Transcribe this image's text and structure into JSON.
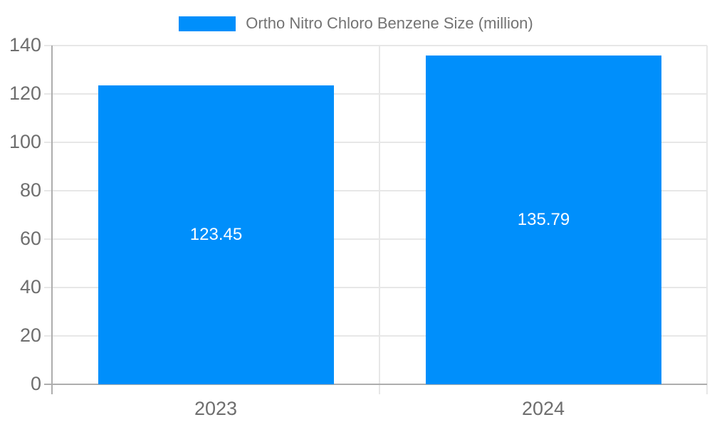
{
  "chart_data": {
    "type": "bar",
    "title": "",
    "legend": "Ortho Nitro Chloro Benzene Size (million)",
    "legend_position": "top",
    "categories": [
      "2023",
      "2024"
    ],
    "series": [
      {
        "name": "Ortho Nitro Chloro Benzene Size (million)",
        "values": [
          123.45,
          135.79
        ]
      }
    ],
    "data_labels": [
      "123.45",
      "135.79"
    ],
    "xlabel": "",
    "ylabel": "",
    "ylim": [
      0,
      140
    ],
    "yticks": [
      0,
      20,
      40,
      60,
      80,
      100,
      120,
      140
    ],
    "ytick_labels": [
      "0",
      "20",
      "40",
      "60",
      "80",
      "100",
      "120",
      "140"
    ],
    "grid": true,
    "colors": {
      "bar": "#008FFB",
      "grid_line": "#e7e7e7",
      "axis_line": "#adadad",
      "tick_label": "#6e6e6e",
      "legend_text": "#737373",
      "value_label": "#ffffff",
      "background": "#ffffff"
    }
  }
}
